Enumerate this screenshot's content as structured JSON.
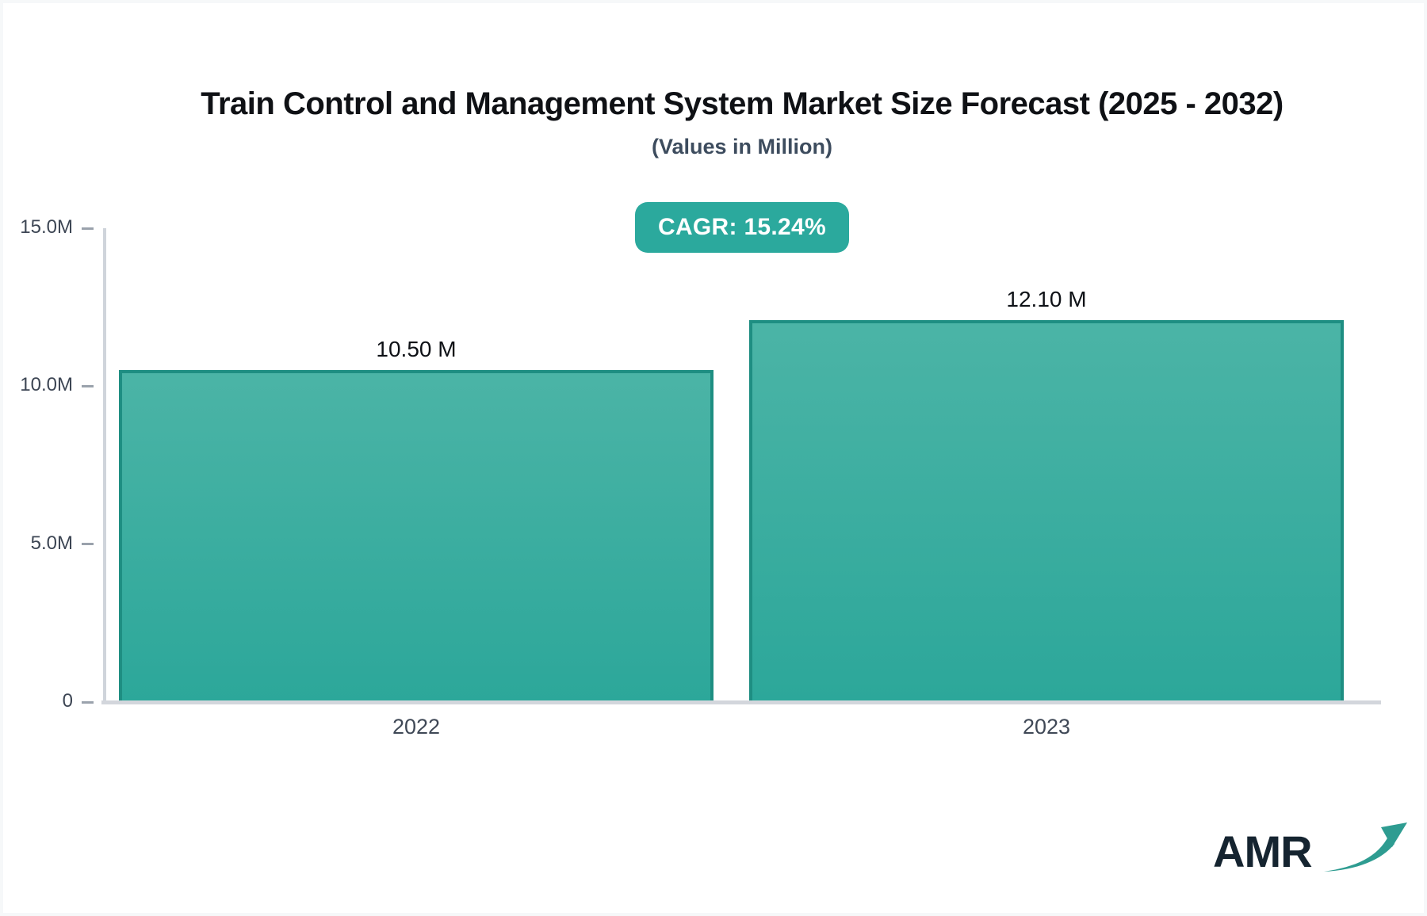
{
  "header": {
    "title": "Train Control and Management System Market Size Forecast (2025 - 2032)",
    "subtitle": "(Values in Million)"
  },
  "badge": {
    "label": "CAGR: 15.24%",
    "background": "#2BA99D"
  },
  "chart_data": {
    "type": "bar",
    "title": "Train Control and Management System Market Size Forecast (2025 - 2032)",
    "subtitle": "(Values in Million)",
    "categories": [
      "2022",
      "2023"
    ],
    "values": [
      10.5,
      12.1
    ],
    "value_labels": [
      "10.50 M",
      "12.10 M"
    ],
    "ylim": [
      0,
      15
    ],
    "yticks": [
      {
        "value": 0,
        "label": "0"
      },
      {
        "value": 5,
        "label": "5.0M"
      },
      {
        "value": 10,
        "label": "10.0M"
      },
      {
        "value": 15,
        "label": "15.0M"
      }
    ],
    "grid": false,
    "legend": null,
    "bar_color_top": "#4BB4A6",
    "bar_color_bottom": "#2CA79A",
    "bar_border_color": "#1E8E82",
    "axis_color": "#D3D6DC",
    "tick_color": "#9AA2AC"
  },
  "logo": {
    "text": "AMR",
    "text_color": "#152430",
    "arrow_color": "#2E9C91"
  }
}
